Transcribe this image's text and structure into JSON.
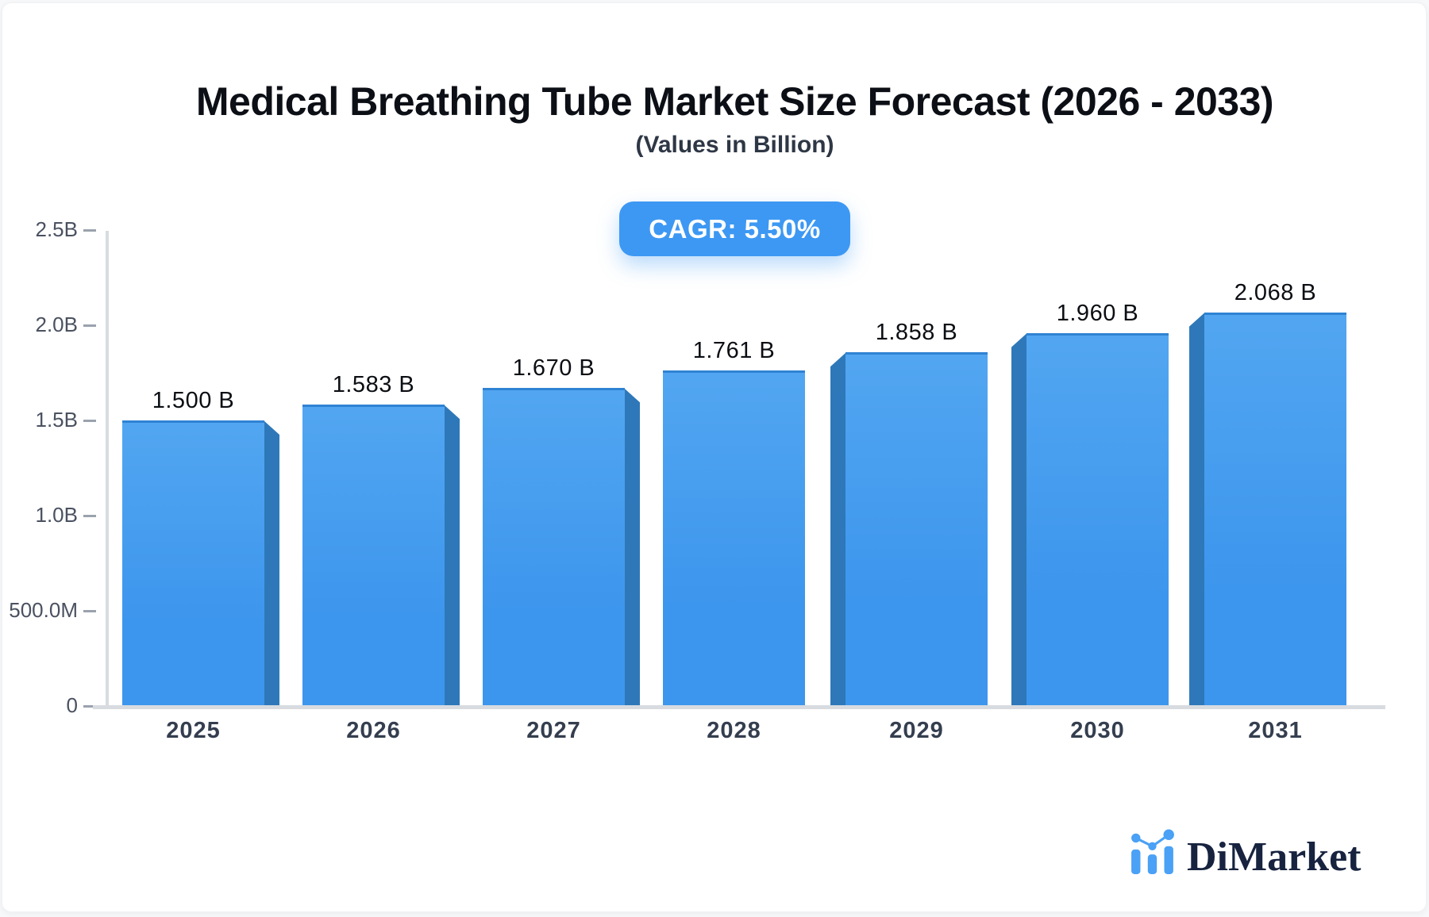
{
  "header": {
    "title": "Medical Breathing Tube Market Size Forecast (2026 - 2033)",
    "subtitle": "(Values in Billion)",
    "cagr_label": "CAGR: 5.50%"
  },
  "chart_data": {
    "type": "bar",
    "title": "Medical Breathing Tube Market Size Forecast (2026 - 2033)",
    "subtitle": "(Values in Billion)",
    "cagr": "5.50%",
    "categories": [
      "2025",
      "2026",
      "2027",
      "2028",
      "2029",
      "2030",
      "2031"
    ],
    "values": [
      1.5,
      1.583,
      1.67,
      1.761,
      1.858,
      1.96,
      2.068
    ],
    "value_labels": [
      "1.500 B",
      "1.583 B",
      "1.670 B",
      "1.761 B",
      "1.858 B",
      "1.960 B",
      "2.068 B"
    ],
    "unit": "Billion",
    "ylim": [
      0,
      2.5
    ],
    "yticks": [
      {
        "label": "2.5B",
        "value": 2.5
      },
      {
        "label": "2.0B",
        "value": 2.0
      },
      {
        "label": "1.5B",
        "value": 1.5
      },
      {
        "label": "1.0B",
        "value": 1.0
      },
      {
        "label": "500.0M",
        "value": 0.5
      },
      {
        "label": "0",
        "value": 0
      }
    ],
    "grid": false,
    "legend": false,
    "colors": {
      "bar_face_top": "#52a6f1",
      "bar_face_bottom": "#3d96ed",
      "bar_face_edge": "#2f83d3",
      "bar_side": "#2e78b9",
      "badge_background": "#3d98f3",
      "badge_text": "#ffffff",
      "axis_line": "#d8dbe0",
      "tick_dash": "#9aa2ad"
    }
  },
  "logo": {
    "text": "DiMarket",
    "icon": "bar-chart-logo-icon",
    "icon_color": "#4aa1f5",
    "text_color": "#17233f"
  }
}
